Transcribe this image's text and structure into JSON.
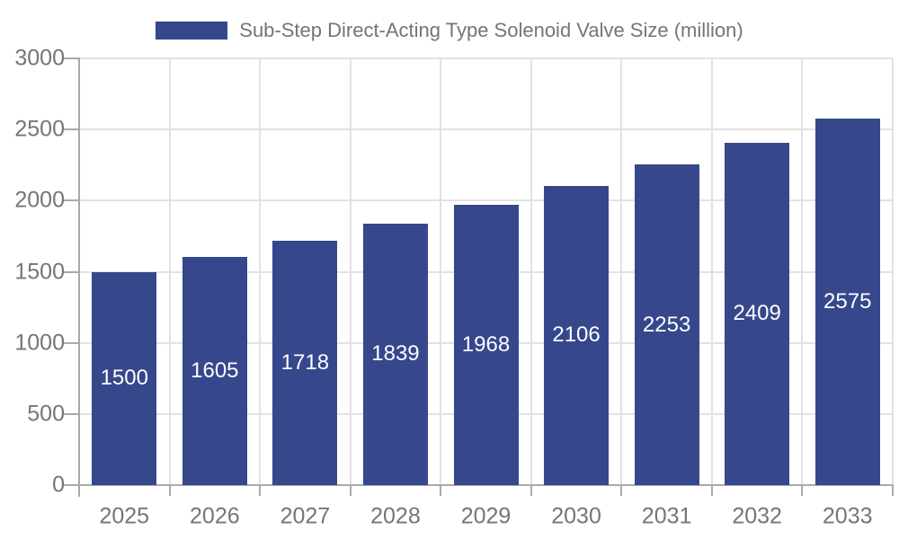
{
  "legend": {
    "label": "Sub-Step Direct-Acting Type Solenoid Valve Size (million)"
  },
  "colors": {
    "bar": "#36478C",
    "legend_text": "#757575",
    "axis_text": "#757575",
    "value_label_text": "#ffffff",
    "axis_line": "#a9a9a9",
    "grid_line": "#e2e2e2",
    "background": "#ffffff"
  },
  "chart_data": {
    "type": "bar",
    "title": "",
    "legend": [
      "Sub-Step Direct-Acting Type Solenoid Valve Size (million)"
    ],
    "legend_position": "top",
    "categories": [
      "2025",
      "2026",
      "2027",
      "2028",
      "2029",
      "2030",
      "2031",
      "2032",
      "2033"
    ],
    "series": [
      {
        "name": "Sub-Step Direct-Acting Type Solenoid Valve Size (million)",
        "values": [
          1500,
          1605,
          1718,
          1839,
          1968,
          2106,
          2253,
          2409,
          2575
        ]
      }
    ],
    "xlabel": "",
    "ylabel": "",
    "ylim": [
      0,
      3000
    ],
    "yticks": [
      0,
      500,
      1000,
      1500,
      2000,
      2500,
      3000
    ],
    "grid": true,
    "value_labels": "inside-center"
  }
}
